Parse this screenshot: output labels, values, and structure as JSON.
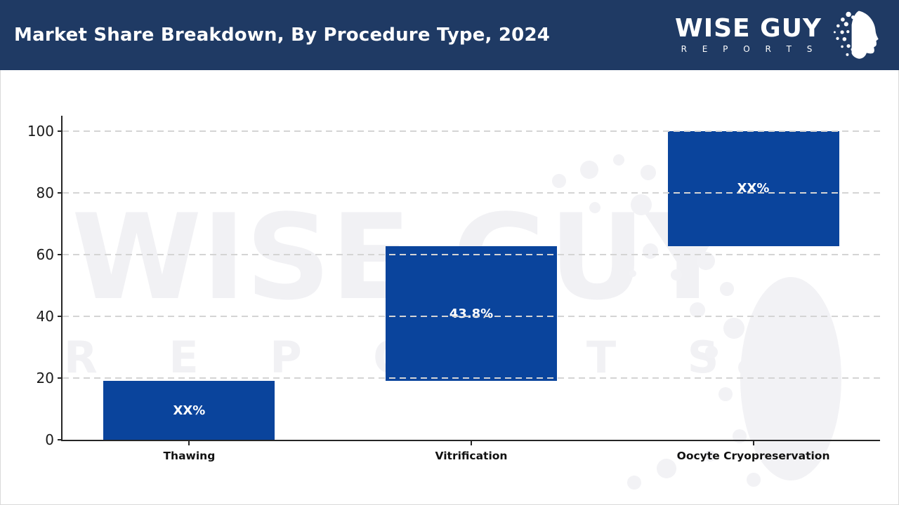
{
  "header": {
    "title": "Market Share Breakdown, By Procedure Type, 2024",
    "logo": {
      "wordmark": "WISE GUY",
      "subtext": "R E P O R T S"
    }
  },
  "watermark": {
    "line1": "WISE GUY",
    "line2": "R E P O R T S"
  },
  "colors": {
    "header_bg": "#1f3a64",
    "bar": "#0a449c",
    "axis": "#262626",
    "gridline": "#d4d4d4",
    "bar_label": "#ffffff",
    "watermark": "#f1f1f4"
  },
  "chart_data": {
    "type": "bar",
    "subtype": "waterfall-floating-bars",
    "title": "Market Share Breakdown, By Procedure Type, 2024",
    "categories": [
      "Thawing",
      "Vitrification",
      "Oocyte Cryopreservation"
    ],
    "series": [
      {
        "name": "Market share (%)",
        "segments": [
          {
            "category": "Thawing",
            "label": "XX%",
            "start": 0,
            "end": 19
          },
          {
            "category": "Vitrification",
            "label": "43.8%",
            "start": 19,
            "end": 62.8
          },
          {
            "category": "Oocyte Cryopreservation",
            "label": "XX%",
            "start": 62.8,
            "end": 100
          }
        ]
      }
    ],
    "xlabel": "",
    "ylabel": "",
    "y_ticks": [
      0,
      20,
      40,
      60,
      80,
      100
    ],
    "ylim": [
      0,
      105
    ],
    "grid": "dashed-horizontal",
    "legend": "none"
  }
}
